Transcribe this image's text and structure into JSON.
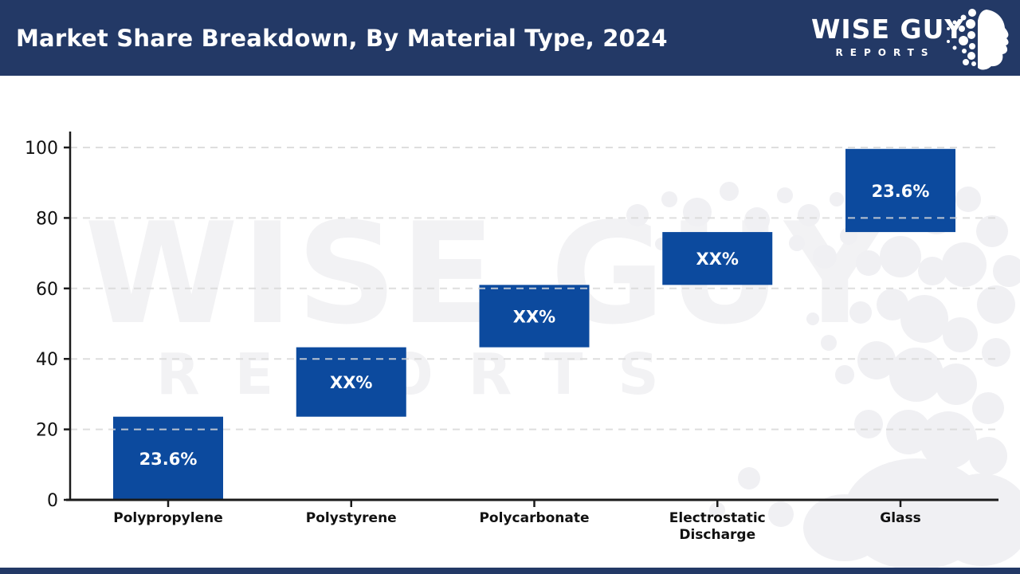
{
  "header": {
    "title": "Market Share Breakdown, By Material Type, 2024",
    "logo": {
      "brand": "WISE GUY",
      "sub": "REPORTS"
    }
  },
  "watermark": {
    "brand": "WISE GUY",
    "sub": "REPORTS"
  },
  "colors": {
    "header_bg": "#233966",
    "bar": "#0C4A9E",
    "bar_label": "#FFFFFF",
    "grid": "#D9D9D9",
    "axis": "#1A1A1A",
    "tick_label": "#111111",
    "watermark": "#F2F2F4"
  },
  "chart_data": {
    "type": "bar",
    "subtype": "waterfall",
    "title": "Market Share Breakdown, By Material Type, 2024",
    "categories": [
      "Polypropylene",
      "Polystyrene",
      "Polycarbonate",
      "Electrostatic\nDischarge",
      "Glass"
    ],
    "segments": [
      {
        "category": "Polypropylene",
        "start": 0,
        "end": 23.6,
        "label": "23.6%"
      },
      {
        "category": "Polystyrene",
        "start": 23.6,
        "end": 43.3,
        "label": "XX%"
      },
      {
        "category": "Polycarbonate",
        "start": 43.3,
        "end": 61.0,
        "label": "XX%"
      },
      {
        "category": "Electrostatic Discharge",
        "start": 61.0,
        "end": 76.0,
        "label": "XX%"
      },
      {
        "category": "Glass",
        "start": 76.0,
        "end": 99.6,
        "label": "23.6%"
      }
    ],
    "yticks": [
      0,
      20,
      40,
      60,
      80,
      100
    ],
    "ylim": [
      0,
      105
    ],
    "xlabel": "",
    "ylabel": "",
    "grid": "dashed-horizontal",
    "legend": "none"
  }
}
